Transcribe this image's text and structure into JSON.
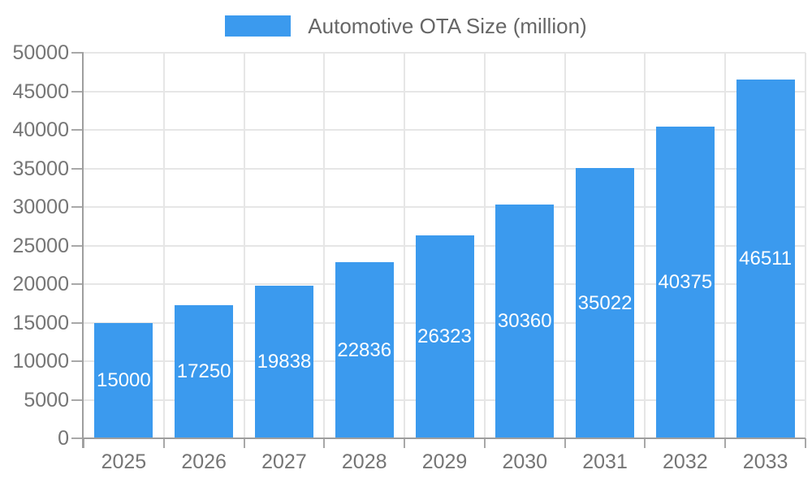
{
  "chart_data": {
    "type": "bar",
    "title": "Automotive OTA Size (million)",
    "categories": [
      "2025",
      "2026",
      "2027",
      "2028",
      "2029",
      "2030",
      "2031",
      "2032",
      "2033"
    ],
    "series": [
      {
        "name": "Automotive OTA Size (million)",
        "values": [
          15000,
          17250,
          19838,
          22836,
          26323,
          30360,
          35022,
          40375,
          46511
        ]
      }
    ],
    "xlabel": "",
    "ylabel": "",
    "ylim": [
      0,
      50000
    ],
    "ytick_step": 5000,
    "yticks": [
      0,
      5000,
      10000,
      15000,
      20000,
      25000,
      30000,
      35000,
      40000,
      45000,
      50000
    ],
    "grid": true,
    "legend_position": "top",
    "bar_value_labels": "inside-center",
    "colors": {
      "bar": "#3B9AEE",
      "grid": "#E6E6E6",
      "axis": "#9E9E9E",
      "tick": "#A8A8A8",
      "axis_label": "#757575",
      "bar_label": "#FFFFFF",
      "legend_text": "#666666"
    }
  }
}
